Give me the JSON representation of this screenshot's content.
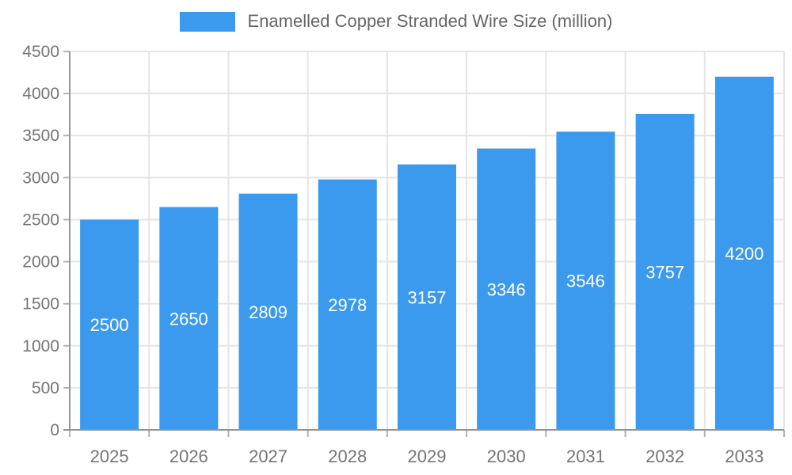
{
  "legend": {
    "label": "Enamelled Copper Stranded Wire Size (million)"
  },
  "colors": {
    "bar": "#3B99EE",
    "grid": "#e5e5e5",
    "axis": "#949494",
    "tick": "#b3b3b3",
    "tick_text": "#757575",
    "legend_text": "#666666",
    "value_label": "#ffffff",
    "background": "#ffffff"
  },
  "chart_data": {
    "type": "bar",
    "title": "Enamelled Copper Stranded Wire Size (million)",
    "categories": [
      "2025",
      "2026",
      "2027",
      "2028",
      "2029",
      "2030",
      "2031",
      "2032",
      "2033"
    ],
    "values": [
      2500,
      2650,
      2809,
      2978,
      3157,
      3346,
      3546,
      3757,
      4200
    ],
    "series": [
      {
        "name": "Enamelled Copper Stranded Wire Size (million)",
        "values": [
          2500,
          2650,
          2809,
          2978,
          3157,
          3346,
          3546,
          3757,
          4200
        ]
      }
    ],
    "xlabel": "",
    "ylabel": "",
    "ylim": [
      0,
      4500
    ],
    "yticks": [
      0,
      500,
      1000,
      1500,
      2000,
      2500,
      3000,
      3500,
      4000,
      4500
    ],
    "grid": true,
    "legend_position": "top",
    "value_labels": "inside-center"
  }
}
